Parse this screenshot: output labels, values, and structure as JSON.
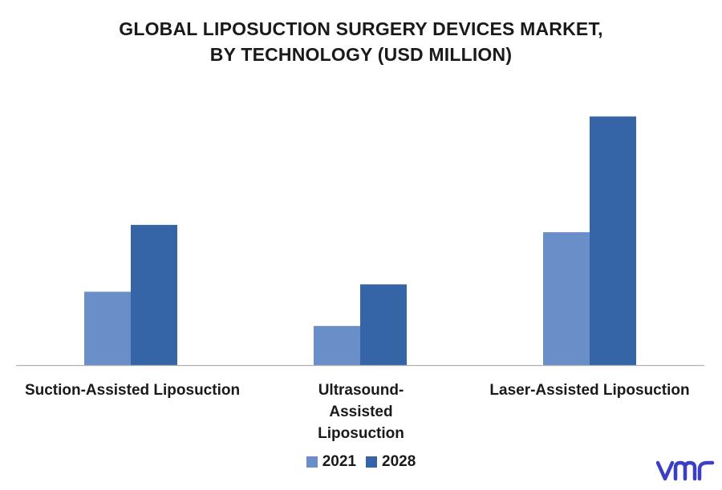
{
  "chart_data": {
    "type": "bar",
    "title_line1": "GLOBAL LIPOSUCTION SURGERY DEVICES MARKET,",
    "title_line2": "BY TECHNOLOGY (USD MILLION)",
    "categories": [
      "Suction-Assisted Liposuction",
      "Ultrasound-Assisted Liposuction",
      "Laser-Assisted Liposuction"
    ],
    "series": [
      {
        "name": "2021",
        "color": "#6a8fc8",
        "values": [
          90,
          48,
          163
        ]
      },
      {
        "name": "2028",
        "color": "#3565a6",
        "values": [
          172,
          99,
          305
        ]
      }
    ],
    "ylim": [
      0,
      330
    ],
    "grid": false,
    "legend_position": "bottom"
  },
  "logo": {
    "text": "vmr",
    "color": "#3a3fc4",
    "name": "vmr-logo-icon"
  }
}
